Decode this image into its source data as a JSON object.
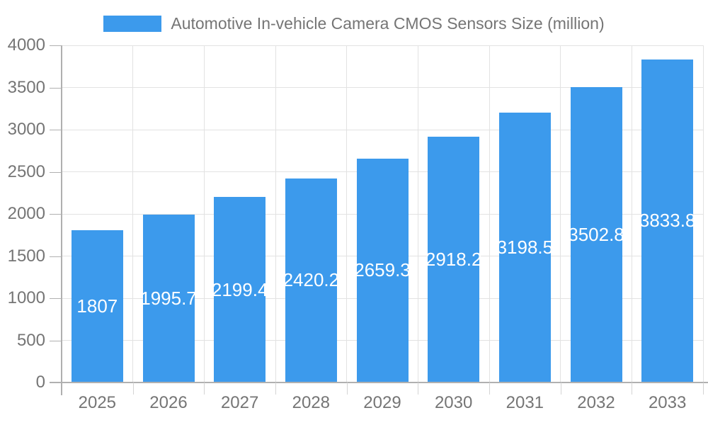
{
  "legend": {
    "series_label": "Automotive In-vehicle Camera CMOS Sensors Size (million)"
  },
  "colors": {
    "bar": "#3C9AEC",
    "grid_line": "#E2E2E2",
    "axis_line": "#B0B0B0",
    "x_tick_mark": "#D4D4D4",
    "axis_text": "#757575",
    "legend_text": "#757575",
    "value_text": "#FFFFFF",
    "background": "#FFFFFF"
  },
  "chart_data": {
    "type": "bar",
    "title": "Automotive In-vehicle Camera CMOS Sensors Size (million)",
    "legend_position": "top",
    "grid": true,
    "categories": [
      "2025",
      "2026",
      "2027",
      "2028",
      "2029",
      "2030",
      "2031",
      "2032",
      "2033"
    ],
    "series": [
      {
        "name": "Automotive In-vehicle Camera CMOS Sensors Size (million)",
        "values": [
          1807,
          1995.7,
          2199.4,
          2420.2,
          2659.3,
          2918.2,
          3198.5,
          3502.8,
          3833.8
        ]
      }
    ],
    "values": [
      1807,
      1995.7,
      2199.4,
      2420.2,
      2659.3,
      2918.2,
      3198.5,
      3502.8,
      3833.8
    ],
    "value_labels": [
      "1807",
      "1995.7",
      "2199.4",
      "2420.2",
      "2659.3",
      "2918.2",
      "3198.5",
      "3502.8",
      "3833.8"
    ],
    "xlabel": "",
    "ylabel": "",
    "ylim": [
      0,
      4000
    ],
    "ytick_interval": 500,
    "ytick_labels": [
      "0",
      "500",
      "1000",
      "1500",
      "2000",
      "2500",
      "3000",
      "3500",
      "4000"
    ]
  }
}
